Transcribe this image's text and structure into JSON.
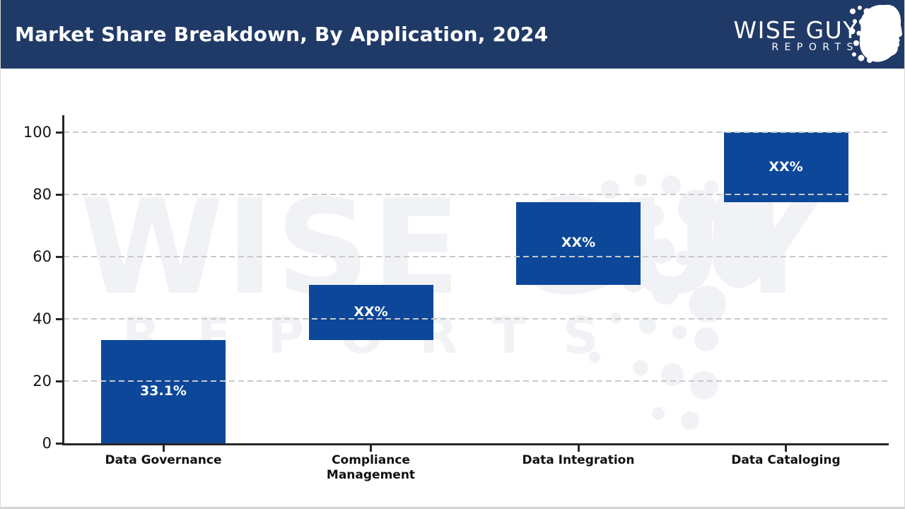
{
  "header": {
    "title": "Market Share Breakdown, By Application, 2024",
    "logo": {
      "wordmark": "WISE GUY",
      "subtext": "REPORTS"
    }
  },
  "watermark": {
    "wordmark": "WISE GUY",
    "subtext": "REPORTS"
  },
  "colors": {
    "header_bg": "#203a68",
    "bar_blue": "#0c4799",
    "axis": "#262626",
    "gridline": "#c9c9c9",
    "watermark_gray": "#f1f2f5",
    "bar_label_text": "#ffffff",
    "tick_text": "#141414",
    "canvas_border": "#d9d9d9"
  },
  "chart_data": {
    "type": "bar",
    "subtype": "floating-waterfall",
    "title": "Market Share Breakdown, By Application, 2024",
    "categories": [
      "Data Governance",
      "Compliance\nManagement",
      "Data Integration",
      "Data Cataloging"
    ],
    "segments": [
      {
        "category": "Data Governance",
        "start": 0,
        "end": 33.1,
        "label": "33.1%"
      },
      {
        "category": "Compliance Management",
        "start": 33.1,
        "end": 51,
        "label": "XX%"
      },
      {
        "category": "Data Integration",
        "start": 51,
        "end": 77.5,
        "label": "XX%"
      },
      {
        "category": "Data Cataloging",
        "start": 77.5,
        "end": 100,
        "label": "XX%"
      }
    ],
    "yticks": [
      0,
      20,
      40,
      60,
      80,
      100
    ],
    "ylim": [
      0,
      105
    ],
    "xlabel": "",
    "ylabel": "",
    "grid": true,
    "grid_style": "dashed",
    "legend": false,
    "bar_color": "#0c4799",
    "value_axis": "percent market share"
  }
}
